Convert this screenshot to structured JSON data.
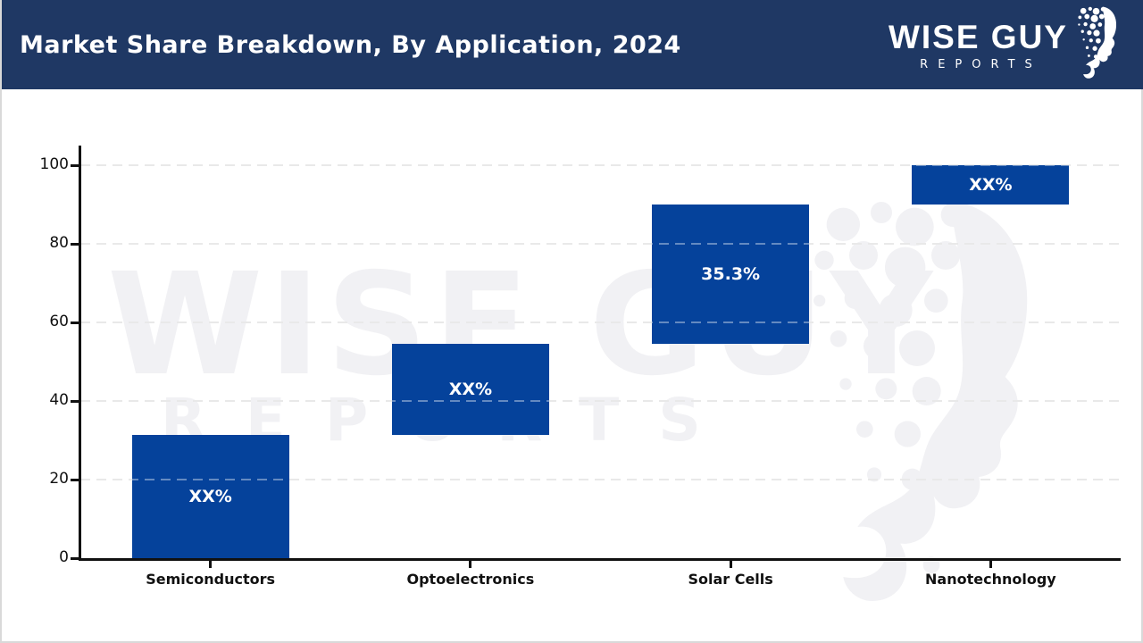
{
  "header": {
    "title": "Market Share Breakdown, By Application, 2024",
    "bg_color": "#1f3864"
  },
  "brand": {
    "logo_line1": "WISE GUY",
    "logo_line2": "REPORTS",
    "watermark_line1": "WISE GUY",
    "watermark_line2": "REPORTS"
  },
  "chart_data": {
    "type": "bar",
    "subtype": "waterfall",
    "title": "Market Share Breakdown, By Application, 2024",
    "categories": [
      "Semiconductors",
      "Optoelectronics",
      "Solar Cells",
      "Nanotechnology"
    ],
    "bars": [
      {
        "category": "Semiconductors",
        "start": 0,
        "end": 31.4,
        "value": 31.4,
        "label": "XX%"
      },
      {
        "category": "Optoelectronics",
        "start": 31.4,
        "end": 54.6,
        "value": 23.2,
        "label": "XX%"
      },
      {
        "category": "Solar Cells",
        "start": 54.6,
        "end": 89.9,
        "value": 35.3,
        "label": "35.3%"
      },
      {
        "category": "Nanotechnology",
        "start": 89.9,
        "end": 100,
        "value": 10.1,
        "label": "XX%"
      }
    ],
    "yticks": [
      0,
      20,
      40,
      60,
      80,
      100
    ],
    "ylim": [
      0,
      105
    ],
    "grid": {
      "horizontal": true,
      "style": "dashed"
    },
    "legend": false,
    "colors": {
      "bar": "#05429b",
      "bar_label": "#ffffff",
      "axis": "#111111",
      "gridline": "#dcdcdc",
      "header_bg": "#1f3864",
      "watermark": "#f1f1f4"
    }
  }
}
